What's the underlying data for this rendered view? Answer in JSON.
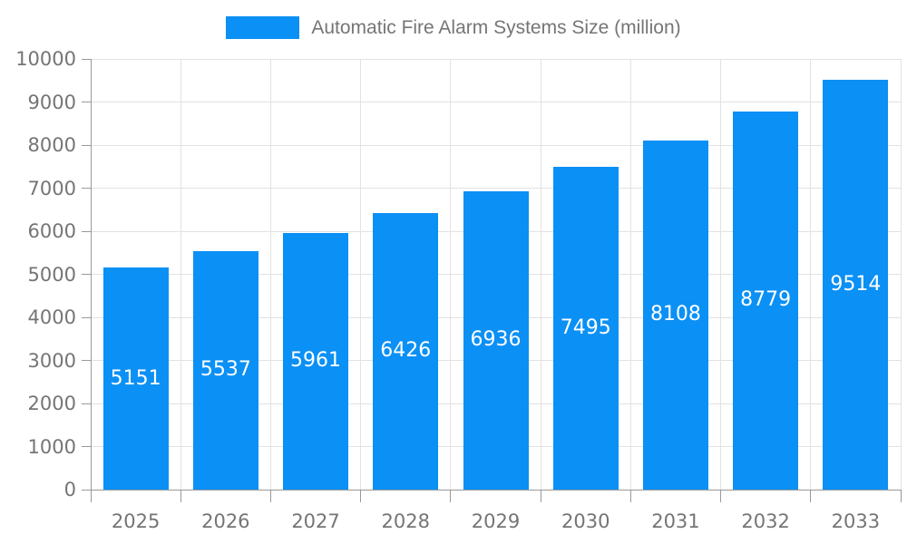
{
  "chart_data": {
    "type": "bar",
    "title": "Automatic Fire Alarm Systems Size (million)",
    "legend": [
      "Automatic Fire Alarm Systems Size (million)"
    ],
    "legend_position": "top-center",
    "categories": [
      "2025",
      "2026",
      "2027",
      "2028",
      "2029",
      "2030",
      "2031",
      "2032",
      "2033"
    ],
    "series": [
      {
        "name": "Automatic Fire Alarm Systems Size (million)",
        "values": [
          5151,
          5537,
          5961,
          6426,
          6936,
          7495,
          8108,
          8779,
          9514
        ]
      }
    ],
    "xlabel": "",
    "ylabel": "",
    "ylim": [
      0,
      10000
    ],
    "y_ticks": [
      0,
      1000,
      2000,
      3000,
      4000,
      5000,
      6000,
      7000,
      8000,
      9000,
      10000
    ],
    "grid": true,
    "value_labels": "inside-bar-centered-white"
  },
  "style": {
    "bar_color": "#0B90F5",
    "grid_color": "#E2E2E2",
    "axis_color": "#999999",
    "tick_label_color": "#757575",
    "legend_text_color": "#757575",
    "value_label_color": "#FFFFFF",
    "background_color": "#FFFFFF"
  }
}
